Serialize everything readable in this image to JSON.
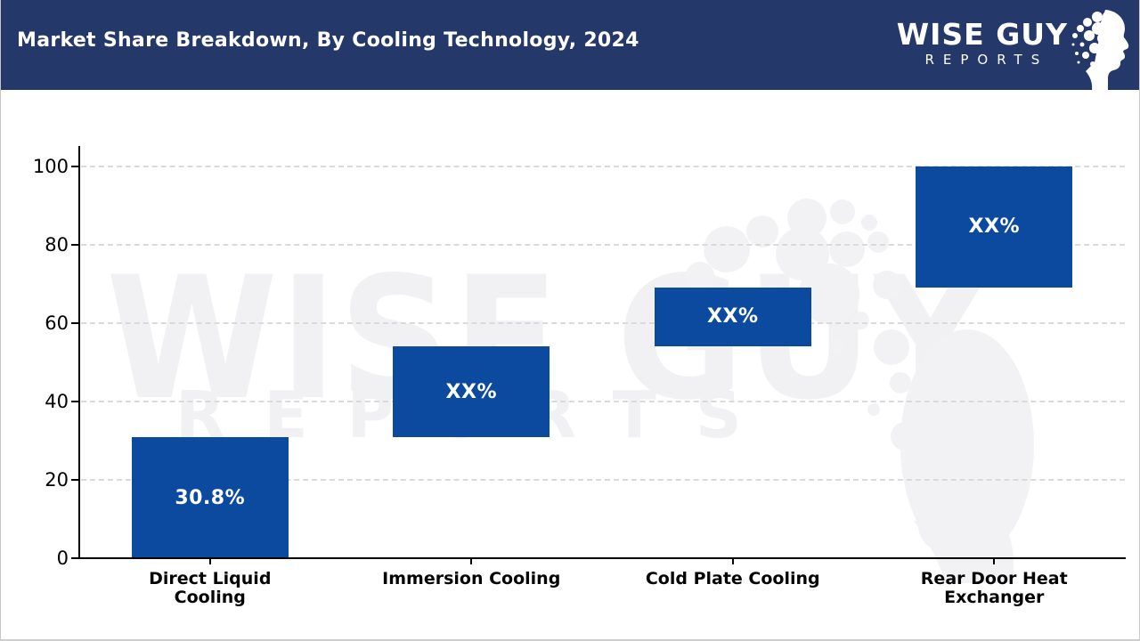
{
  "header": {
    "title": "Market Share Breakdown, By Cooling Technology, 2024",
    "bg_color": "#24386A",
    "logo": {
      "name_top": "WISE GUY",
      "name_bottom": "REPORTS",
      "icon": "dotted-head-profile-icon",
      "text_color": "#ffffff"
    }
  },
  "watermark": {
    "line1": "WISE GUY",
    "line2": "REPORTS",
    "color": "#f1f1f4"
  },
  "chart_data": {
    "type": "bar",
    "subtype": "waterfall",
    "title": "Market Share Breakdown, By Cooling Technology, 2024",
    "categories": [
      "Direct Liquid\nCooling",
      "Immersion Cooling",
      "Cold Plate Cooling",
      "Rear Door Heat\nExchanger"
    ],
    "series": [
      {
        "name": "Market share segment",
        "segments": [
          {
            "category": "Direct Liquid Cooling",
            "start": 0,
            "end": 30.8,
            "value": 30.8,
            "label": "30.8%"
          },
          {
            "category": "Immersion Cooling",
            "start": 30.8,
            "end": 54.0,
            "value": 23.2,
            "label": "XX%"
          },
          {
            "category": "Cold Plate Cooling",
            "start": 54.0,
            "end": 69.2,
            "value": 15.2,
            "label": "XX%"
          },
          {
            "category": "Rear Door Heat Exchanger",
            "start": 69.2,
            "end": 100.0,
            "value": 30.8,
            "label": "XX%"
          }
        ]
      }
    ],
    "bar_labels": [
      "30.8%",
      "XX%",
      "XX%",
      "XX%"
    ],
    "xlabel": "",
    "ylabel": "",
    "ylim": [
      0,
      100
    ],
    "yticks": [
      0,
      20,
      40,
      60,
      80,
      100
    ],
    "grid": "horizontal-dashed",
    "legend": "none",
    "bar_color": "#0B4A9E",
    "bar_label_color": "#ffffff",
    "axis_color": "#000000",
    "gridline_color": "#dadada"
  }
}
